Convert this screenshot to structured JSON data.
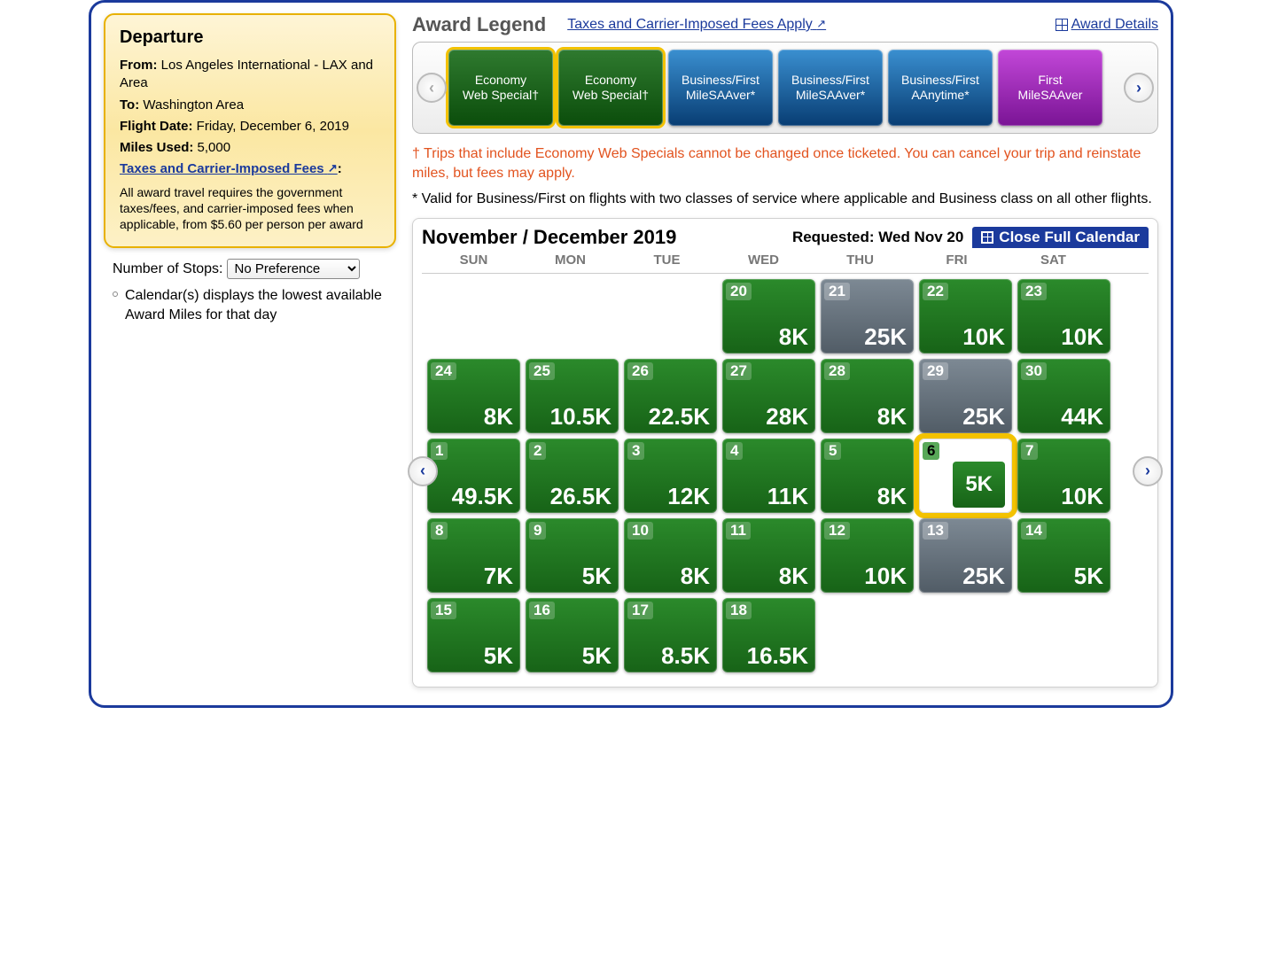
{
  "departure": {
    "heading": "Departure",
    "from_label": "From:",
    "from_value": "Los Angeles International - LAX and Area",
    "to_label": "To:",
    "to_value": "Washington Area",
    "date_label": "Flight Date:",
    "date_value": "Friday, December 6, 2019",
    "miles_label": "Miles Used:",
    "miles_value": "5,000",
    "fees_link": "Taxes and Carrier-Imposed Fees",
    "fees_text": "All award travel requires the government taxes/fees, and carrier-imposed fees when applicable, from $5.60 per person per award"
  },
  "stops": {
    "label": "Number of Stops:",
    "selected": "No Preference",
    "note": "Calendar(s) displays the lowest available Award Miles for that day"
  },
  "legend": {
    "title": "Award Legend",
    "fees_link": "Taxes and Carrier-Imposed Fees Apply",
    "details": "Award Details",
    "cards": [
      {
        "line1": "Economy",
        "line2": "Web Special†",
        "cls": "lg-eco sel"
      },
      {
        "line1": "Economy",
        "line2": "Web Special†",
        "cls": "lg-eco sel"
      },
      {
        "line1": "Business/First",
        "line2": "MileSAAver*",
        "cls": "lg-biz"
      },
      {
        "line1": "Business/First",
        "line2": "MileSAAver*",
        "cls": "lg-biz"
      },
      {
        "line1": "Business/First",
        "line2": "AAnytime*",
        "cls": "lg-biz"
      },
      {
        "line1": "First",
        "line2": "MileSAAver",
        "cls": "lg-first"
      }
    ]
  },
  "footnotes": {
    "orange": "† Trips that include Economy Web Specials cannot be changed once ticketed. You can cancel your trip and reinstate miles, but fees may apply.",
    "star": "* Valid for Business/First on flights with two classes of service where applicable and Business class on all other flights."
  },
  "calendar": {
    "title": "November / December 2019",
    "requested": "Requested: Wed Nov 20",
    "close": "Close Full Calendar",
    "dow": [
      "SUN",
      "MON",
      "TUE",
      "WED",
      "THU",
      "FRI",
      "SAT"
    ],
    "cells": [
      null,
      null,
      null,
      {
        "d": "20",
        "m": "8K",
        "c": "green"
      },
      {
        "d": "21",
        "m": "25K",
        "c": "gray"
      },
      {
        "d": "22",
        "m": "10K",
        "c": "green"
      },
      {
        "d": "23",
        "m": "10K",
        "c": "green"
      },
      {
        "d": "24",
        "m": "8K",
        "c": "green"
      },
      {
        "d": "25",
        "m": "10.5K",
        "c": "green"
      },
      {
        "d": "26",
        "m": "22.5K",
        "c": "green"
      },
      {
        "d": "27",
        "m": "28K",
        "c": "green"
      },
      {
        "d": "28",
        "m": "8K",
        "c": "green"
      },
      {
        "d": "29",
        "m": "25K",
        "c": "gray"
      },
      {
        "d": "30",
        "m": "44K",
        "c": "green"
      },
      {
        "d": "1",
        "m": "49.5K",
        "c": "green"
      },
      {
        "d": "2",
        "m": "26.5K",
        "c": "green"
      },
      {
        "d": "3",
        "m": "12K",
        "c": "green"
      },
      {
        "d": "4",
        "m": "11K",
        "c": "green"
      },
      {
        "d": "5",
        "m": "8K",
        "c": "green"
      },
      {
        "d": "6",
        "m": "5K",
        "c": "green",
        "sel": true
      },
      {
        "d": "7",
        "m": "10K",
        "c": "green"
      },
      {
        "d": "8",
        "m": "7K",
        "c": "green"
      },
      {
        "d": "9",
        "m": "5K",
        "c": "green"
      },
      {
        "d": "10",
        "m": "8K",
        "c": "green"
      },
      {
        "d": "11",
        "m": "8K",
        "c": "green"
      },
      {
        "d": "12",
        "m": "10K",
        "c": "green"
      },
      {
        "d": "13",
        "m": "25K",
        "c": "gray"
      },
      {
        "d": "14",
        "m": "5K",
        "c": "green"
      },
      {
        "d": "15",
        "m": "5K",
        "c": "green"
      },
      {
        "d": "16",
        "m": "5K",
        "c": "green"
      },
      {
        "d": "17",
        "m": "8.5K",
        "c": "green"
      },
      {
        "d": "18",
        "m": "16.5K",
        "c": "green"
      },
      null,
      null,
      null
    ]
  }
}
